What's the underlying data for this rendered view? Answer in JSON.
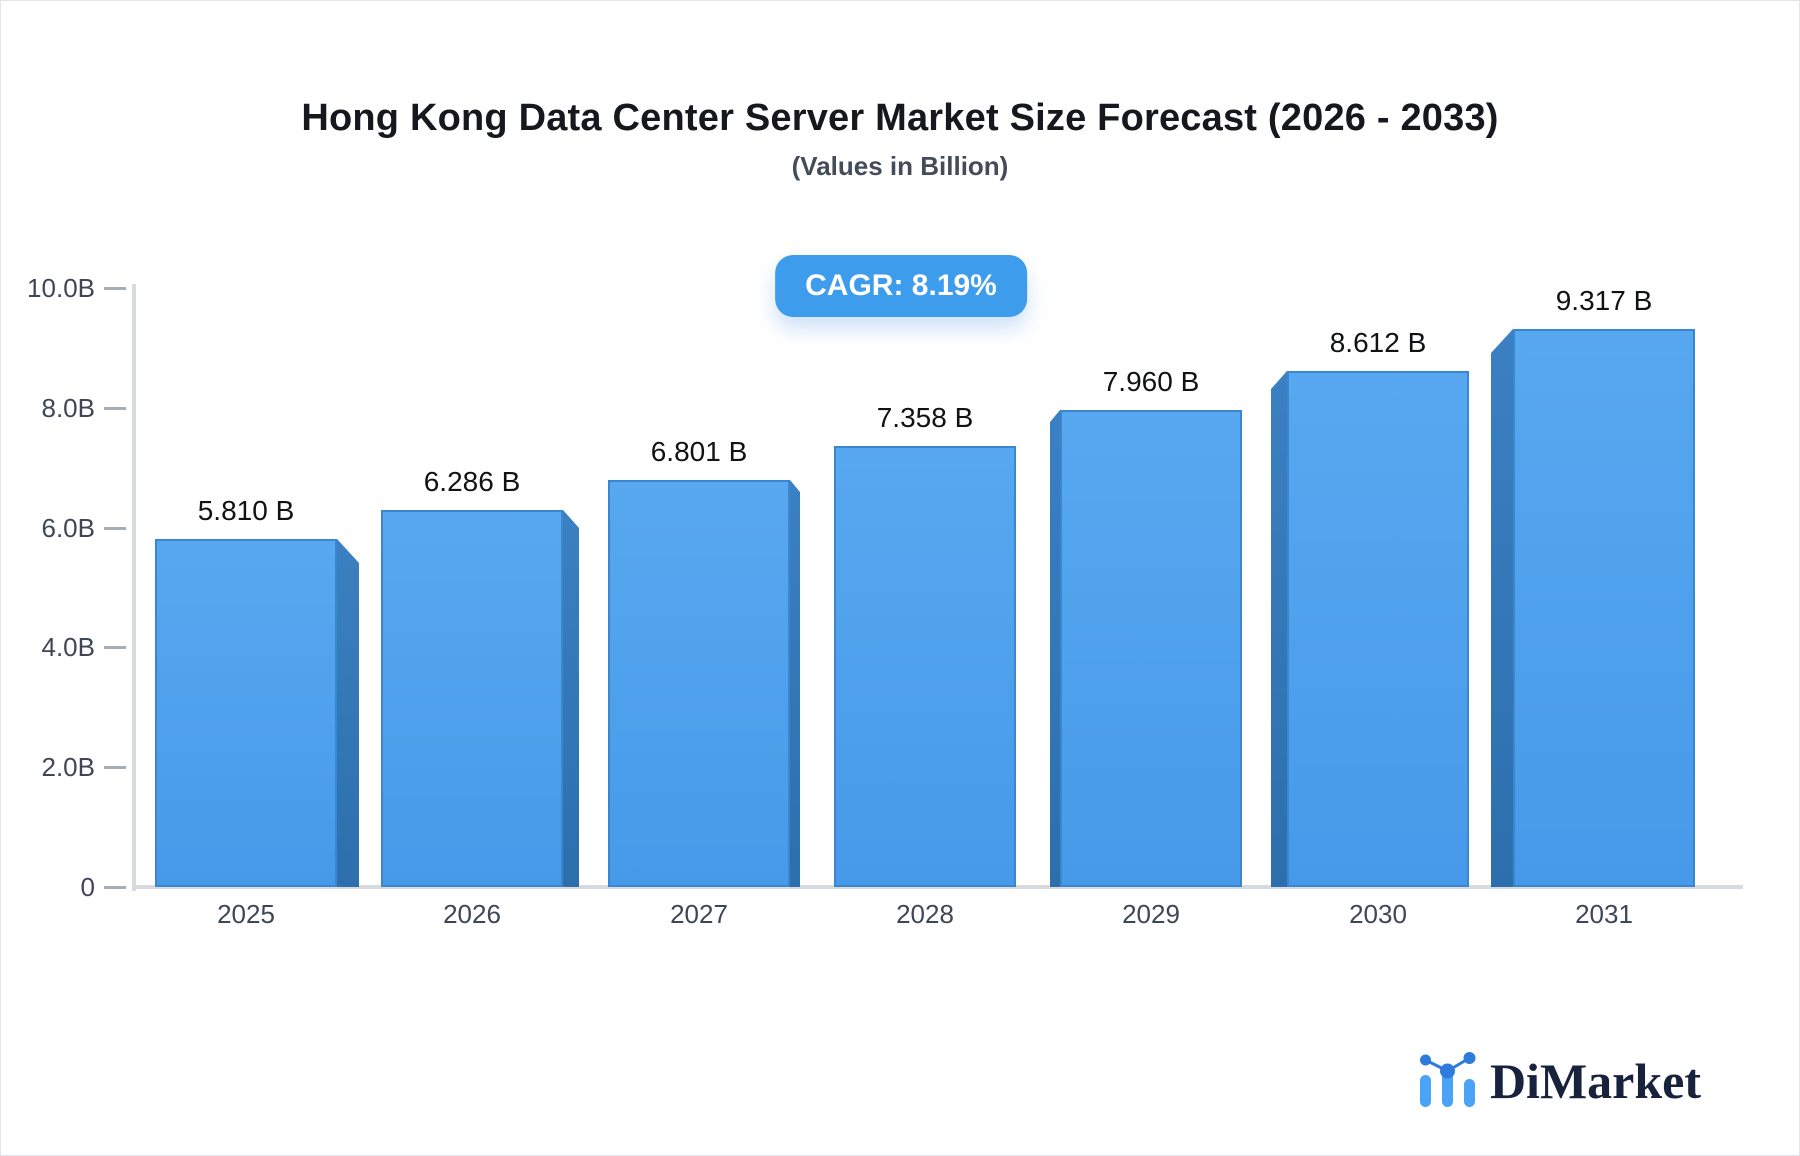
{
  "title": "Hong Kong Data Center Server Market Size Forecast (2026 - 2033)",
  "subtitle": "(Values in Billion)",
  "cagr_badge": "CAGR: 8.19%",
  "logo": {
    "text": "DiMarket",
    "icon": "mini-bar-chart-icon"
  },
  "colors": {
    "bar_fill": "#4A9FEC",
    "bar_side": "#2E76B8",
    "badge_bg": "#3D9CEB",
    "axis_line": "#D7DBE0",
    "tick_text": "#3E4757",
    "logo_navy": "#17223C",
    "logo_blue": "#4AA3F7"
  },
  "chart_data": {
    "type": "bar",
    "title": "Hong Kong Data Center Server Market Size Forecast (2026 - 2033)",
    "subtitle": "(Values in Billion)",
    "categories": [
      "2025",
      "2026",
      "2027",
      "2028",
      "2029",
      "2030",
      "2031"
    ],
    "values": [
      5.81,
      6.286,
      6.801,
      7.358,
      7.96,
      8.612,
      9.317
    ],
    "value_labels": [
      "5.810 B",
      "6.286 B",
      "6.801 B",
      "7.358 B",
      "7.960 B",
      "8.612 B",
      "9.317 B"
    ],
    "xlabel": "",
    "ylabel": "",
    "ylim": [
      0,
      10
    ],
    "y_tick_values": [
      10,
      8,
      6,
      4,
      2,
      0
    ],
    "y_tick_labels": [
      "10.0B",
      "8.0B",
      "6.0B",
      "4.0B",
      "2.0B",
      "0"
    ],
    "grid": false,
    "legend": false,
    "annotation": "CAGR: 8.19%",
    "bar_style": "3d-perspective-blue"
  }
}
